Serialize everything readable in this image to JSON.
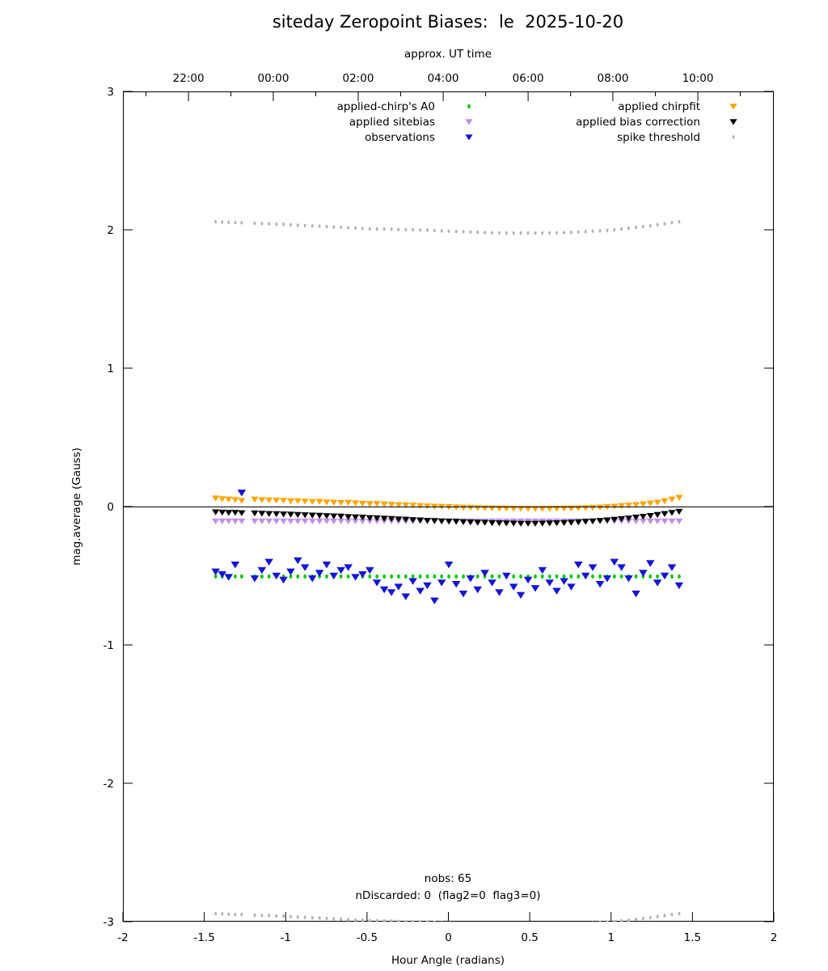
{
  "chart_data": {
    "type": "scatter",
    "title": "siteday Zeropoint Biases:  le  2025-10-20",
    "x2label": "approx. UT time",
    "xlabel": "Hour Angle (radians)",
    "ylabel": "mag.average (Gauss)",
    "xlim": [
      -2,
      2
    ],
    "ylim": [
      -3,
      3
    ],
    "grid": false,
    "zero_line": true,
    "annotations": {
      "nobs": "nobs: 65",
      "ndiscarded": "nDiscarded: 0  (flag2=0  flag3=0)"
    },
    "x_ticks": {
      "values": [
        -2,
        -1.5,
        -1,
        -0.5,
        0,
        0.5,
        1,
        1.5,
        2
      ],
      "labels": [
        "-2",
        "-1.5",
        "-1",
        "-0.5",
        "0",
        "0.5",
        "1",
        "1.5",
        "2"
      ]
    },
    "y_ticks": {
      "values": [
        -3,
        -2,
        -1,
        0,
        1,
        2,
        3
      ],
      "labels": [
        "-3",
        "-2",
        "-1",
        "0",
        "1",
        "2",
        "3"
      ]
    },
    "x2_ticks": {
      "labels": [
        "22:00",
        "00:00",
        "02:00",
        "04:00",
        "06:00",
        "08:00",
        "10:00"
      ],
      "positions": [
        -1.597,
        -1.076,
        -0.554,
        -0.032,
        0.49,
        1.011,
        1.533
      ],
      "minor": [
        -1.858,
        -1.336,
        -0.815,
        -0.293,
        0.229,
        0.751,
        1.272,
        1.794
      ]
    },
    "x": [
      -1.43,
      -1.39,
      -1.35,
      -1.31,
      -1.27,
      -1.19,
      -1.146,
      -1.102,
      -1.057,
      -1.013,
      -0.969,
      -0.925,
      -0.881,
      -0.836,
      -0.792,
      -0.748,
      -0.704,
      -0.66,
      -0.615,
      -0.571,
      -0.527,
      -0.483,
      -0.439,
      -0.394,
      -0.35,
      -0.306,
      -0.262,
      -0.218,
      -0.173,
      -0.129,
      -0.085,
      -0.041,
      0.003,
      0.048,
      0.092,
      0.136,
      0.18,
      0.224,
      0.269,
      0.313,
      0.357,
      0.401,
      0.445,
      0.49,
      0.534,
      0.578,
      0.622,
      0.666,
      0.711,
      0.755,
      0.799,
      0.843,
      0.887,
      0.932,
      0.976,
      1.02,
      1.064,
      1.108,
      1.153,
      1.197,
      1.241,
      1.285,
      1.329,
      1.374,
      1.418
    ],
    "series": [
      {
        "id": "spike_upper",
        "name": "spike threshold",
        "marker": "small-dot",
        "color": "#b4b4b4",
        "size": 1,
        "values": [
          2.058,
          2.056,
          2.054,
          2.052,
          2.051,
          2.047,
          2.045,
          2.043,
          2.041,
          2.039,
          2.036,
          2.033,
          2.031,
          2.028,
          2.026,
          2.023,
          2.02,
          2.018,
          2.015,
          2.012,
          2.01,
          2.007,
          2.006,
          2.005,
          2.004,
          2.002,
          2.001,
          2.0,
          1.999,
          1.997,
          1.995,
          1.992,
          1.99,
          1.988,
          1.986,
          1.984,
          1.982,
          1.98,
          1.978,
          1.978,
          1.977,
          1.977,
          1.977,
          1.977,
          1.977,
          1.978,
          1.978,
          1.978,
          1.979,
          1.981,
          1.984,
          1.987,
          1.99,
          1.993,
          1.996,
          2.0,
          2.005,
          2.011,
          2.017,
          2.023,
          2.029,
          2.036,
          2.043,
          2.051,
          2.058
        ]
      },
      {
        "id": "spike_lower",
        "name": "spike threshold (lower)",
        "marker": "small-dot",
        "color": "#b4b4b4",
        "size": 1,
        "values": [
          -2.942,
          -2.944,
          -2.946,
          -2.948,
          -2.949,
          -2.953,
          -2.955,
          -2.957,
          -2.959,
          -2.961,
          -2.964,
          -2.967,
          -2.969,
          -2.972,
          -2.974,
          -2.977,
          -2.98,
          -2.982,
          -2.985,
          -2.988,
          -2.99,
          -2.993,
          -2.994,
          -2.995,
          -2.996,
          -2.998,
          -2.999,
          -3.0,
          -3.001,
          -3.003,
          -3.005,
          -3.008,
          -3.01,
          -3.012,
          -3.014,
          -3.016,
          -3.018,
          -3.02,
          -3.022,
          -3.022,
          -3.023,
          -3.023,
          -3.023,
          -3.023,
          -3.023,
          -3.022,
          -3.022,
          -3.022,
          -3.021,
          -3.019,
          -3.016,
          -3.013,
          -3.01,
          -3.007,
          -3.004,
          -3.0,
          -2.995,
          -2.989,
          -2.983,
          -2.977,
          -2.971,
          -2.964,
          -2.957,
          -2.949,
          -2.942
        ]
      },
      {
        "id": "sitebias",
        "name": "applied sitebias",
        "marker": "triangle-down",
        "color": "#c090e8",
        "size": 1,
        "values": [
          -0.105,
          -0.105,
          -0.105,
          -0.105,
          -0.105,
          -0.105,
          -0.105,
          -0.105,
          -0.105,
          -0.105,
          -0.105,
          -0.105,
          -0.105,
          -0.105,
          -0.105,
          -0.105,
          -0.105,
          -0.105,
          -0.105,
          -0.105,
          -0.105,
          -0.105,
          -0.105,
          -0.105,
          -0.105,
          -0.105,
          -0.105,
          -0.105,
          -0.105,
          -0.105,
          -0.105,
          -0.105,
          -0.105,
          -0.105,
          -0.105,
          -0.105,
          -0.105,
          -0.105,
          -0.105,
          -0.105,
          -0.105,
          -0.105,
          -0.105,
          -0.105,
          -0.105,
          -0.105,
          -0.105,
          -0.105,
          -0.105,
          -0.105,
          -0.105,
          -0.105,
          -0.105,
          -0.105,
          -0.105,
          -0.105,
          -0.105,
          -0.105,
          -0.105,
          -0.105,
          -0.105,
          -0.105,
          -0.105,
          -0.105,
          -0.105
        ]
      },
      {
        "id": "chirpfit",
        "name": "applied chirpfit",
        "marker": "triangle-down",
        "color": "#ffa500",
        "size": 1,
        "values": [
          0.06,
          0.055,
          0.052,
          0.05,
          0.042,
          0.052,
          0.048,
          0.047,
          0.045,
          0.043,
          0.04,
          0.041,
          0.038,
          0.035,
          0.036,
          0.032,
          0.03,
          0.028,
          0.029,
          0.025,
          0.022,
          0.02,
          0.021,
          0.017,
          0.014,
          0.012,
          0.01,
          0.008,
          0.005,
          0.003,
          0.001,
          0.0,
          -0.002,
          -0.004,
          -0.006,
          -0.007,
          -0.009,
          -0.01,
          -0.011,
          -0.012,
          -0.013,
          -0.014,
          -0.014,
          -0.015,
          -0.015,
          -0.015,
          -0.014,
          -0.014,
          -0.013,
          -0.012,
          -0.011,
          -0.009,
          -0.007,
          -0.005,
          -0.002,
          0.001,
          0.005,
          0.009,
          0.013,
          0.018,
          0.024,
          0.03,
          0.04,
          0.052,
          0.065
        ]
      },
      {
        "id": "bias_correction",
        "name": "applied bias correction",
        "marker": "triangle-down",
        "color": "#000000",
        "size": 1,
        "values": [
          -0.04,
          -0.042,
          -0.044,
          -0.043,
          -0.046,
          -0.048,
          -0.05,
          -0.052,
          -0.053,
          -0.055,
          -0.057,
          -0.059,
          -0.061,
          -0.063,
          -0.065,
          -0.067,
          -0.069,
          -0.071,
          -0.074,
          -0.076,
          -0.078,
          -0.081,
          -0.083,
          -0.086,
          -0.088,
          -0.091,
          -0.093,
          -0.096,
          -0.098,
          -0.101,
          -0.103,
          -0.105,
          -0.107,
          -0.109,
          -0.111,
          -0.113,
          -0.115,
          -0.116,
          -0.118,
          -0.119,
          -0.12,
          -0.121,
          -0.122,
          -0.122,
          -0.122,
          -0.121,
          -0.12,
          -0.119,
          -0.117,
          -0.115,
          -0.112,
          -0.109,
          -0.106,
          -0.102,
          -0.098,
          -0.094,
          -0.089,
          -0.084,
          -0.078,
          -0.072,
          -0.066,
          -0.059,
          -0.052,
          -0.044,
          -0.036
        ]
      },
      {
        "id": "a0",
        "name": "applied-chirp's A0",
        "marker": "dot",
        "color": "#00cc00",
        "size": 1,
        "values": [
          -0.505,
          -0.505,
          -0.505,
          -0.505,
          -0.505,
          -0.505,
          -0.505,
          -0.505,
          -0.505,
          -0.505,
          -0.505,
          -0.505,
          -0.505,
          -0.505,
          -0.505,
          -0.505,
          -0.505,
          -0.505,
          -0.505,
          -0.505,
          -0.505,
          -0.505,
          -0.505,
          -0.505,
          -0.505,
          -0.505,
          -0.505,
          -0.505,
          -0.505,
          -0.505,
          -0.505,
          -0.505,
          -0.505,
          -0.505,
          -0.505,
          -0.505,
          -0.505,
          -0.505,
          -0.505,
          -0.505,
          -0.505,
          -0.505,
          -0.505,
          -0.505,
          -0.505,
          -0.505,
          -0.505,
          -0.505,
          -0.505,
          -0.505,
          -0.505,
          -0.505,
          -0.505,
          -0.505,
          -0.505,
          -0.505,
          -0.505,
          -0.505,
          -0.505,
          -0.505,
          -0.505,
          -0.505,
          -0.505,
          -0.505,
          -0.505
        ]
      },
      {
        "id": "observations",
        "name": "observations",
        "marker": "triangle-down",
        "color": "#1515d6",
        "size": 1.15,
        "values": [
          -0.47,
          -0.49,
          -0.51,
          -0.42,
          0.1,
          -0.52,
          -0.46,
          -0.4,
          -0.5,
          -0.53,
          -0.47,
          -0.39,
          -0.44,
          -0.52,
          -0.48,
          -0.42,
          -0.5,
          -0.46,
          -0.44,
          -0.51,
          -0.49,
          -0.46,
          -0.55,
          -0.6,
          -0.62,
          -0.58,
          -0.65,
          -0.54,
          -0.61,
          -0.57,
          -0.68,
          -0.55,
          -0.42,
          -0.56,
          -0.63,
          -0.52,
          -0.6,
          -0.48,
          -0.55,
          -0.62,
          -0.5,
          -0.58,
          -0.64,
          -0.53,
          -0.59,
          -0.46,
          -0.55,
          -0.61,
          -0.54,
          -0.58,
          -0.42,
          -0.5,
          -0.44,
          -0.56,
          -0.52,
          -0.4,
          -0.44,
          -0.52,
          -0.63,
          -0.48,
          -0.41,
          -0.55,
          -0.5,
          -0.44,
          -0.57
        ]
      }
    ],
    "legend": {
      "position": "top-inside",
      "columns": [
        {
          "entries": [
            {
              "label": "applied-chirp's A0",
              "series": "a0"
            },
            {
              "label": "applied sitebias",
              "series": "sitebias"
            },
            {
              "label": "observations",
              "series": "observations"
            }
          ]
        },
        {
          "entries": [
            {
              "label": "applied chirpfit",
              "series": "chirpfit"
            },
            {
              "label": "applied bias correction",
              "series": "bias_correction"
            },
            {
              "label": "spike threshold",
              "series": "spike_upper"
            }
          ]
        }
      ]
    }
  }
}
